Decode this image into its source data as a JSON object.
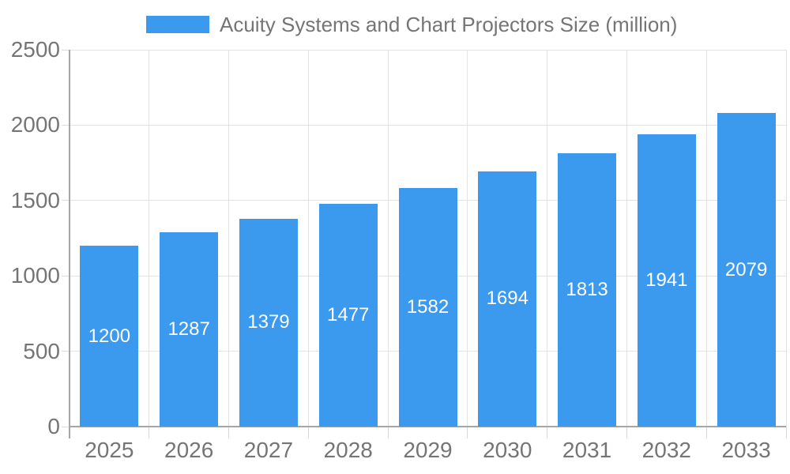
{
  "chart_data": {
    "type": "bar",
    "title": "Acuity Systems and Chart Projectors Size (million)",
    "categories": [
      "2025",
      "2026",
      "2027",
      "2028",
      "2029",
      "2030",
      "2031",
      "2032",
      "2033"
    ],
    "values": [
      1200,
      1287,
      1379,
      1477,
      1582,
      1694,
      1813,
      1941,
      2079
    ],
    "xlabel": "",
    "ylabel": "",
    "ylim": [
      0,
      2500
    ],
    "yticks": [
      0,
      500,
      1000,
      1500,
      2000,
      2500
    ],
    "grid": true,
    "legend_position": "top",
    "value_labels_inside_bars": true,
    "colors": {
      "bar": "#3b99ee",
      "axis_text": "#757575",
      "value_text": "#ffffff",
      "gridline": "#e3e3e3",
      "axis_line": "#a6a6a6",
      "background": "#ffffff"
    }
  }
}
